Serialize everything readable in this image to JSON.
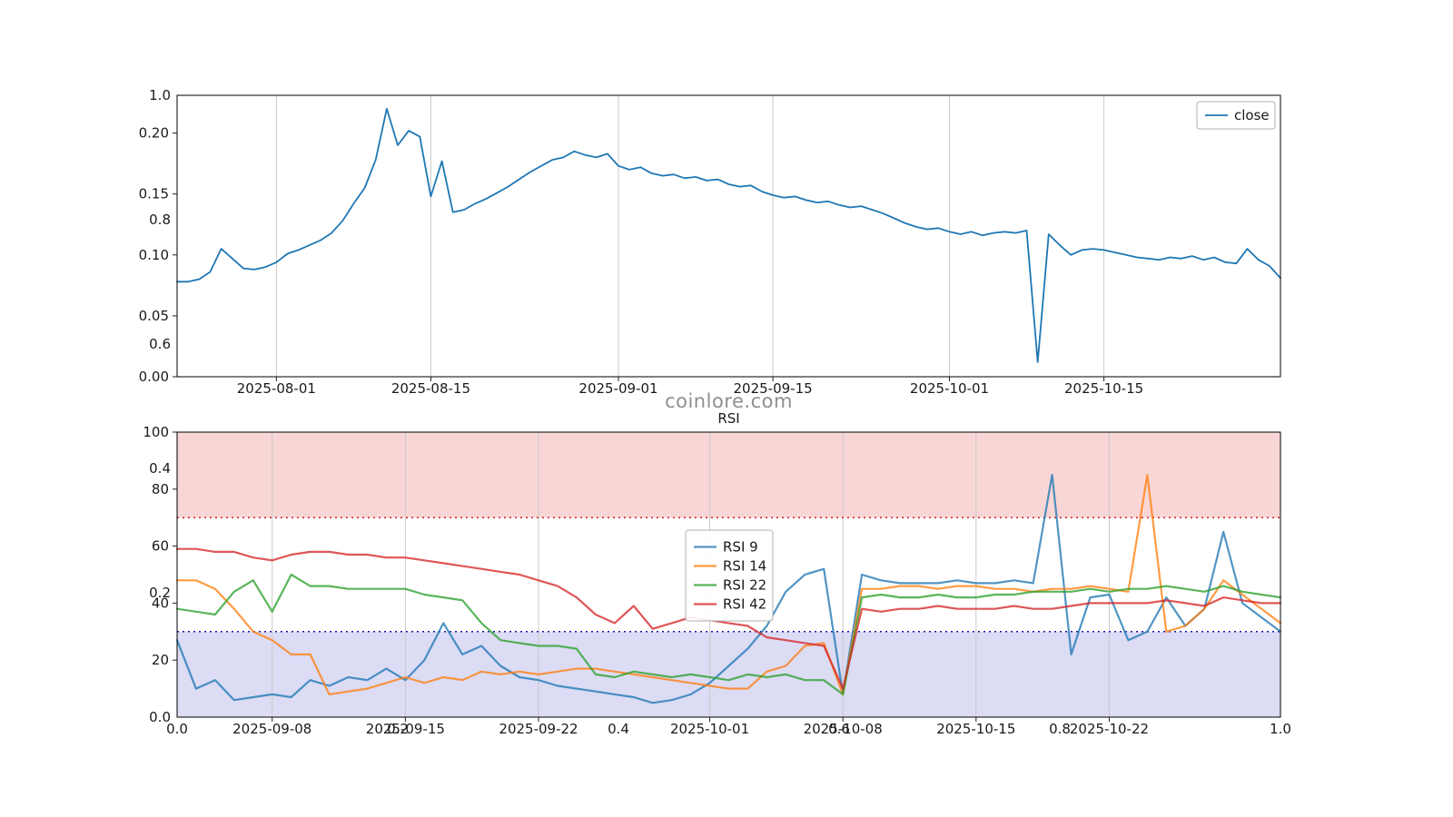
{
  "watermark": {
    "text": "coinlore.com"
  },
  "figure_overlay": {
    "x_labels": [
      "0.0",
      "0.2",
      "0.4",
      "0.6",
      "0.8",
      "1.0"
    ],
    "y_labels": [
      "1.0",
      "0.8",
      "0.6",
      "0.4",
      "0.2",
      "0.0"
    ]
  },
  "chart_data": [
    {
      "id": "price",
      "type": "line",
      "title": "",
      "legend": {
        "position": "top-right",
        "labels": [
          "close"
        ]
      },
      "start_date": "2025-07-23",
      "x_ticks": [
        "2025-08-01",
        "2025-08-15",
        "2025-09-01",
        "2025-09-15",
        "2025-10-01",
        "2025-10-15"
      ],
      "y_ticks": [
        0,
        0.05,
        0.1,
        0.15,
        0.2
      ],
      "y_tick_labels": [
        "0.00",
        "0.05",
        "0.10",
        "0.15",
        "0.20"
      ],
      "ylim": [
        0,
        0.231
      ],
      "grid": "vertical",
      "series": [
        {
          "name": "close",
          "color": "#1f77b4",
          "width": 1.8,
          "opacity": 1,
          "values": [
            0.078,
            0.078,
            0.08,
            0.086,
            0.105,
            0.097,
            0.089,
            0.088,
            0.09,
            0.094,
            0.101,
            0.104,
            0.108,
            0.112,
            0.118,
            0.128,
            0.142,
            0.155,
            0.178,
            0.22,
            0.19,
            0.202,
            0.197,
            0.148,
            0.177,
            0.135,
            0.137,
            0.142,
            0.146,
            0.151,
            0.156,
            0.162,
            0.168,
            0.173,
            0.178,
            0.18,
            0.185,
            0.182,
            0.18,
            0.183,
            0.173,
            0.17,
            0.172,
            0.167,
            0.165,
            0.166,
            0.163,
            0.164,
            0.161,
            0.162,
            0.158,
            0.156,
            0.157,
            0.152,
            0.149,
            0.147,
            0.148,
            0.145,
            0.143,
            0.144,
            0.141,
            0.139,
            0.14,
            0.137,
            0.134,
            0.13,
            0.126,
            0.123,
            0.121,
            0.122,
            0.119,
            0.117,
            0.119,
            0.116,
            0.118,
            0.119,
            0.118,
            0.12,
            0.012,
            0.117,
            0.108,
            0.1,
            0.104,
            0.105,
            0.104,
            0.102,
            0.1,
            0.098,
            0.097,
            0.096,
            0.098,
            0.097,
            0.099,
            0.096,
            0.098,
            0.094,
            0.093,
            0.105,
            0.096,
            0.091,
            0.081
          ]
        }
      ]
    },
    {
      "id": "rsi",
      "type": "line",
      "title": "RSI",
      "legend": {
        "position": "center",
        "labels": [
          "RSI 9",
          "RSI 14",
          "RSI 22",
          "RSI 42"
        ]
      },
      "start_date": "2025-09-03",
      "x_ticks": [
        "2025-09-08",
        "2025-09-15",
        "2025-09-22",
        "2025-10-01",
        "2025-10-08",
        "2025-10-15",
        "2025-10-22"
      ],
      "y_ticks": [
        20,
        40,
        60,
        80,
        100
      ],
      "y_tick_labels": [
        "20",
        "40",
        "60",
        "80",
        "100"
      ],
      "ylim": [
        0,
        100
      ],
      "grid": "vertical",
      "bands": [
        {
          "name": "overbought-band",
          "from": 70,
          "to": 100,
          "color": "#f9d6d6"
        },
        {
          "name": "oversold-band",
          "from": 0,
          "to": 30,
          "color": "#dcdcf5"
        }
      ],
      "hlines": [
        {
          "name": "overbought-threshold",
          "value": 70,
          "color": "#cc2222"
        },
        {
          "name": "oversold-threshold",
          "value": 30,
          "color": "#1a1aa6"
        }
      ],
      "series": [
        {
          "name": "RSI 9",
          "color": "#1f77b4",
          "width": 2.2,
          "opacity": 0.78,
          "values": [
            27,
            10,
            13,
            6,
            7,
            8,
            7,
            13,
            11,
            14,
            13,
            17,
            13,
            20,
            33,
            22,
            25,
            18,
            14,
            13,
            11,
            10,
            9,
            8,
            7,
            5,
            6,
            8,
            12,
            18,
            24,
            32,
            44,
            50,
            52,
            8,
            50,
            48,
            47,
            47,
            47,
            48,
            47,
            47,
            48,
            47,
            85,
            22,
            42,
            43,
            27,
            30,
            42,
            32,
            38,
            65,
            40,
            35,
            30
          ]
        },
        {
          "name": "RSI 14",
          "color": "#ff7f0e",
          "width": 2.2,
          "opacity": 0.78,
          "values": [
            48,
            48,
            45,
            38,
            30,
            27,
            22,
            22,
            8,
            9,
            10,
            12,
            14,
            12,
            14,
            13,
            16,
            15,
            16,
            15,
            16,
            17,
            17,
            16,
            15,
            14,
            13,
            12,
            11,
            10,
            10,
            16,
            18,
            25,
            26,
            8,
            45,
            45,
            46,
            46,
            45,
            46,
            46,
            45,
            45,
            44,
            45,
            45,
            46,
            45,
            44,
            85,
            30,
            32,
            38,
            48,
            43,
            38,
            33
          ]
        },
        {
          "name": "RSI 22",
          "color": "#2ca02c",
          "width": 2.2,
          "opacity": 0.78,
          "values": [
            38,
            37,
            36,
            44,
            48,
            37,
            50,
            46,
            46,
            45,
            45,
            45,
            45,
            43,
            42,
            41,
            33,
            27,
            26,
            25,
            25,
            24,
            15,
            14,
            16,
            15,
            14,
            15,
            14,
            13,
            15,
            14,
            15,
            13,
            13,
            8,
            42,
            43,
            42,
            42,
            43,
            42,
            42,
            43,
            43,
            44,
            44,
            44,
            45,
            44,
            45,
            45,
            46,
            45,
            44,
            46,
            44,
            43,
            42
          ]
        },
        {
          "name": "RSI 42",
          "color": "#d62728",
          "width": 2.2,
          "opacity": 0.78,
          "values": [
            59,
            59,
            58,
            58,
            56,
            55,
            57,
            58,
            58,
            57,
            57,
            56,
            56,
            55,
            54,
            53,
            52,
            51,
            50,
            48,
            46,
            42,
            36,
            33,
            39,
            31,
            33,
            35,
            34,
            33,
            32,
            28,
            27,
            26,
            25,
            10,
            38,
            37,
            38,
            38,
            39,
            38,
            38,
            38,
            39,
            38,
            38,
            39,
            40,
            40,
            40,
            40,
            41,
            40,
            39,
            42,
            41,
            40,
            40
          ]
        }
      ]
    }
  ]
}
